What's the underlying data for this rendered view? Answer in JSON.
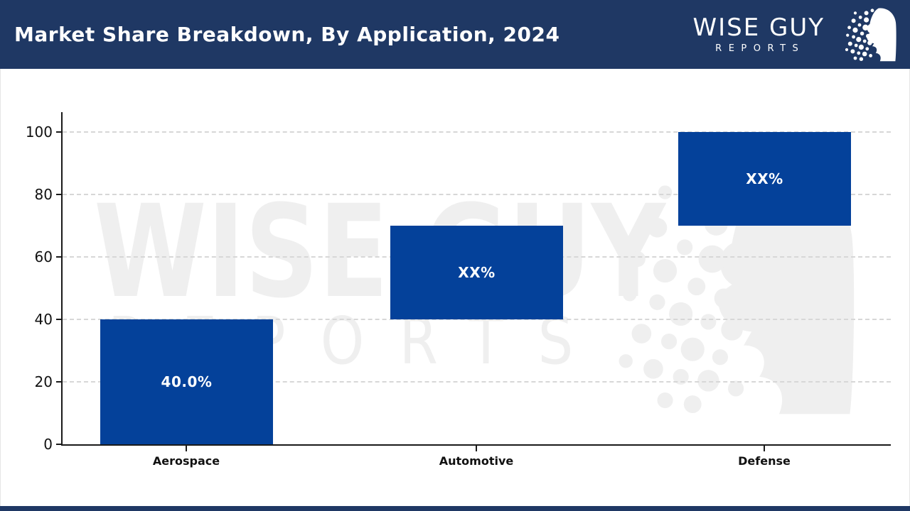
{
  "header": {
    "title": "Market Share Breakdown, By Application, 2024",
    "bg_color": "#1f3864",
    "logo": {
      "wordmark": "WISE GUY",
      "subtext": "REPORTS"
    }
  },
  "watermark": {
    "line1": "WISE GUY",
    "line2": "REPORTS"
  },
  "chart_data": {
    "type": "bar",
    "variant": "waterfall-segments",
    "title": "Market Share Breakdown, By Application, 2024",
    "categories": [
      "Aerospace",
      "Automotive",
      "Defense"
    ],
    "series": [
      {
        "name": "Market share (%)",
        "segments": [
          {
            "category": "Aerospace",
            "start": 0,
            "end": 40,
            "label": "40.0%"
          },
          {
            "category": "Automotive",
            "start": 40,
            "end": 70,
            "label": "XX%"
          },
          {
            "category": "Defense",
            "start": 70,
            "end": 100,
            "label": "XX%"
          }
        ]
      }
    ],
    "segment_heights_pct": [
      40,
      30,
      30
    ],
    "y_ticks": [
      0,
      20,
      40,
      60,
      80,
      100
    ],
    "ylim": [
      0,
      106
    ],
    "xlabel": "",
    "ylabel": "",
    "legend": "none",
    "grid": "horizontal-dashed",
    "bar_color": "#04419a",
    "bar_label_color": "#ffffff",
    "axis_color": "#1a1a1a",
    "grid_color": "#d7d7d7"
  },
  "colors": {
    "header_bg": "#1f3864",
    "footer_bg": "#1f3864",
    "bar": "#04419a",
    "watermark": "#efefef"
  }
}
